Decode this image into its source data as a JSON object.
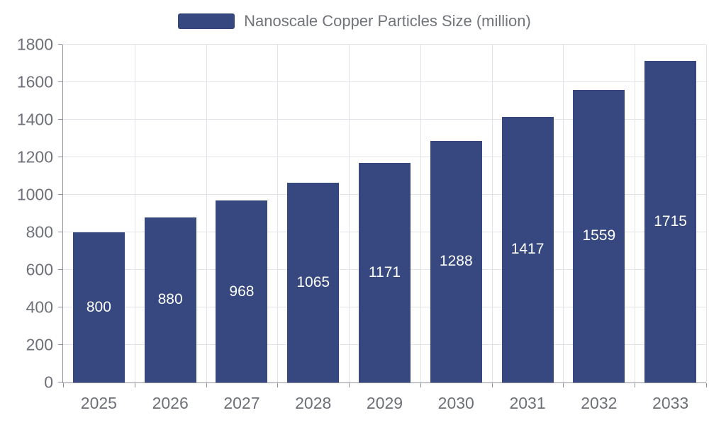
{
  "legend": {
    "label": "Nanoscale Copper Particles Size (million)",
    "swatch_color": "#36487f"
  },
  "chart_data": {
    "type": "bar",
    "title": "Nanoscale Copper Particles Size (million)",
    "categories": [
      "2025",
      "2026",
      "2027",
      "2028",
      "2029",
      "2030",
      "2031",
      "2032",
      "2033"
    ],
    "values": [
      800,
      880,
      968,
      1065,
      1171,
      1288,
      1417,
      1559,
      1715
    ],
    "xlabel": "",
    "ylabel": "",
    "ylim": [
      0,
      1800
    ],
    "y_ticks": [
      0,
      200,
      400,
      600,
      800,
      1000,
      1200,
      1400,
      1600,
      1800
    ],
    "grid": true,
    "legend_position": "top-center",
    "colors": {
      "bar": "#36487f",
      "value_label": "#ffffff",
      "axis_text": "#6e7079",
      "axis_line": "#8f929a",
      "grid_line": "#e2e3e8",
      "background": "#ffffff"
    }
  }
}
